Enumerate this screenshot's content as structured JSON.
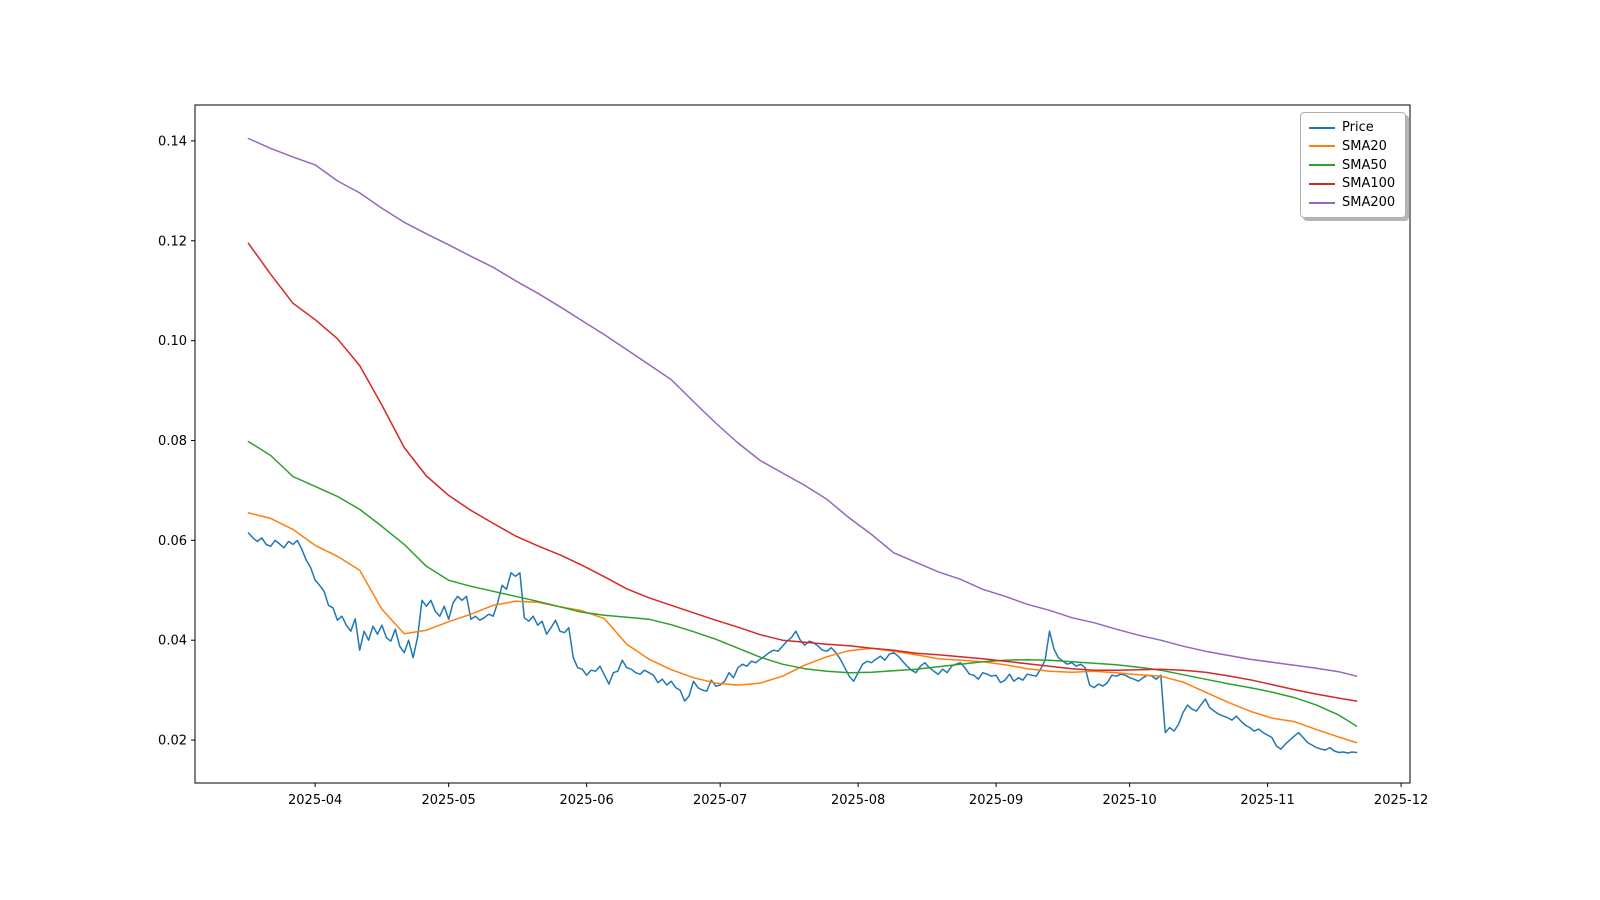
{
  "chart_data": {
    "type": "line",
    "title": "",
    "xlabel": "",
    "ylabel": "",
    "grid": false,
    "x_axis": {
      "note": "x in day-offsets from plot left edge (left edge = 2025-03-05); series run ~2025-03-17 to ~2025-11-21",
      "domain_days": [
        0,
        273
      ],
      "ticks": [
        {
          "day": 27,
          "label": "2025-04"
        },
        {
          "day": 57,
          "label": "2025-05"
        },
        {
          "day": 88,
          "label": "2025-06"
        },
        {
          "day": 118,
          "label": "2025-07"
        },
        {
          "day": 149,
          "label": "2025-08"
        },
        {
          "day": 180,
          "label": "2025-09"
        },
        {
          "day": 210,
          "label": "2025-10"
        },
        {
          "day": 241,
          "label": "2025-11"
        },
        {
          "day": 271,
          "label": "2025-12"
        }
      ]
    },
    "y_axis": {
      "range": [
        0.0114,
        0.1472
      ],
      "ticks": [
        {
          "value": 0.02,
          "label": "0.02"
        },
        {
          "value": 0.04,
          "label": "0.04"
        },
        {
          "value": 0.06,
          "label": "0.06"
        },
        {
          "value": 0.08,
          "label": "0.08"
        },
        {
          "value": 0.1,
          "label": "0.10"
        },
        {
          "value": 0.12,
          "label": "0.12"
        },
        {
          "value": 0.14,
          "label": "0.14"
        }
      ]
    },
    "legend": {
      "position": "upper-right",
      "entries": [
        "Price",
        "SMA20",
        "SMA50",
        "SMA100",
        "SMA200"
      ]
    },
    "series": [
      {
        "name": "Price",
        "color": "#1f77b4",
        "x_start": 12,
        "x_step": 1,
        "x_last": 261,
        "values": [
          0.0615,
          0.0605,
          0.0598,
          0.0605,
          0.0592,
          0.0588,
          0.06,
          0.0593,
          0.0585,
          0.0598,
          0.0592,
          0.06,
          0.0582,
          0.056,
          0.0545,
          0.052,
          0.051,
          0.0498,
          0.047,
          0.0465,
          0.044,
          0.0448,
          0.043,
          0.0418,
          0.0443,
          0.038,
          0.0418,
          0.04,
          0.0428,
          0.0412,
          0.043,
          0.0405,
          0.0398,
          0.0422,
          0.0388,
          0.0375,
          0.04,
          0.0365,
          0.0405,
          0.048,
          0.0468,
          0.048,
          0.0458,
          0.0448,
          0.0468,
          0.0442,
          0.0475,
          0.0488,
          0.048,
          0.0488,
          0.0442,
          0.0448,
          0.044,
          0.0445,
          0.0452,
          0.0448,
          0.0475,
          0.051,
          0.0502,
          0.0535,
          0.0528,
          0.0535,
          0.0445,
          0.0438,
          0.0448,
          0.043,
          0.0438,
          0.0412,
          0.0425,
          0.044,
          0.0418,
          0.0415,
          0.0425,
          0.0365,
          0.0345,
          0.0342,
          0.033,
          0.034,
          0.0338,
          0.0348,
          0.033,
          0.0312,
          0.0335,
          0.0338,
          0.036,
          0.0345,
          0.0342,
          0.0335,
          0.0332,
          0.034,
          0.0335,
          0.033,
          0.0315,
          0.0322,
          0.031,
          0.0318,
          0.0305,
          0.03,
          0.0278,
          0.0288,
          0.0318,
          0.0305,
          0.03,
          0.0298,
          0.032,
          0.0308,
          0.031,
          0.0318,
          0.0335,
          0.0325,
          0.0345,
          0.0352,
          0.0348,
          0.0358,
          0.0355,
          0.0362,
          0.0368,
          0.0375,
          0.038,
          0.0378,
          0.0388,
          0.0398,
          0.0405,
          0.0418,
          0.04,
          0.039,
          0.0398,
          0.0395,
          0.0388,
          0.038,
          0.0378,
          0.0385,
          0.0375,
          0.0362,
          0.0345,
          0.0328,
          0.0318,
          0.0335,
          0.0352,
          0.0358,
          0.0355,
          0.0362,
          0.0368,
          0.036,
          0.0372,
          0.0375,
          0.0368,
          0.0358,
          0.0348,
          0.034,
          0.0335,
          0.0348,
          0.0355,
          0.0345,
          0.0338,
          0.0332,
          0.0342,
          0.0335,
          0.0348,
          0.0352,
          0.0355,
          0.0345,
          0.0332,
          0.033,
          0.0322,
          0.0335,
          0.0332,
          0.0328,
          0.033,
          0.0315,
          0.032,
          0.0332,
          0.0318,
          0.0325,
          0.032,
          0.0332,
          0.033,
          0.0328,
          0.0342,
          0.036,
          0.0418,
          0.0382,
          0.0365,
          0.0358,
          0.0352,
          0.0355,
          0.0348,
          0.0352,
          0.0345,
          0.031,
          0.0305,
          0.0312,
          0.0308,
          0.0315,
          0.033,
          0.0328,
          0.0332,
          0.033,
          0.0325,
          0.0322,
          0.0318,
          0.0325,
          0.033,
          0.0328,
          0.0322,
          0.033,
          0.0215,
          0.0225,
          0.0218,
          0.0232,
          0.0255,
          0.027,
          0.0262,
          0.0258,
          0.027,
          0.0282,
          0.0265,
          0.0258,
          0.0252,
          0.0248,
          0.0245,
          0.024,
          0.0248,
          0.0238,
          0.023,
          0.0225,
          0.0218,
          0.0222,
          0.0215,
          0.021,
          0.0205,
          0.0188,
          0.0182,
          0.0192,
          0.02,
          0.0208,
          0.0215,
          0.0205,
          0.0195,
          0.019,
          0.0185,
          0.0182,
          0.018,
          0.0185,
          0.0178,
          0.0175,
          0.0176,
          0.0174,
          0.0176,
          0.0175
        ]
      },
      {
        "name": "SMA20",
        "color": "#ff7f0e",
        "x_start": 12,
        "x_step": 5,
        "x_last": 261,
        "values": [
          0.0655,
          0.0644,
          0.0622,
          0.059,
          0.0568,
          0.054,
          0.0462,
          0.0413,
          0.042,
          0.0437,
          0.0452,
          0.047,
          0.0478,
          0.0476,
          0.0467,
          0.0459,
          0.0443,
          0.0392,
          0.0362,
          0.0341,
          0.0325,
          0.0314,
          0.031,
          0.0314,
          0.0328,
          0.035,
          0.0367,
          0.0379,
          0.0384,
          0.0378,
          0.0371,
          0.0363,
          0.036,
          0.0357,
          0.0351,
          0.0343,
          0.0338,
          0.0336,
          0.0338,
          0.0335,
          0.0331,
          0.0328,
          0.0316,
          0.0296,
          0.0276,
          0.0258,
          0.0244,
          0.0237,
          0.0221,
          0.0206,
          0.0195
        ]
      },
      {
        "name": "SMA50",
        "color": "#2ca02c",
        "x_start": 12,
        "x_step": 5,
        "x_last": 261,
        "values": [
          0.0798,
          0.077,
          0.0728,
          0.0708,
          0.0688,
          0.0662,
          0.0628,
          0.0592,
          0.0548,
          0.052,
          0.0508,
          0.0498,
          0.0488,
          0.0478,
          0.0467,
          0.0456,
          0.045,
          0.0446,
          0.0442,
          0.0431,
          0.0417,
          0.0402,
          0.0384,
          0.0366,
          0.0352,
          0.0343,
          0.0338,
          0.0335,
          0.0336,
          0.0339,
          0.0342,
          0.0347,
          0.0352,
          0.0357,
          0.036,
          0.0361,
          0.036,
          0.0357,
          0.0354,
          0.0351,
          0.0346,
          0.034,
          0.0331,
          0.0322,
          0.0313,
          0.0305,
          0.0296,
          0.0285,
          0.027,
          0.025,
          0.0228
        ]
      },
      {
        "name": "SMA100",
        "color": "#d62728",
        "x_start": 12,
        "x_step": 5,
        "x_last": 261,
        "values": [
          0.1195,
          0.1133,
          0.1075,
          0.1042,
          0.1004,
          0.095,
          0.0871,
          0.0786,
          0.0729,
          0.069,
          0.066,
          0.0634,
          0.0609,
          0.0589,
          0.0571,
          0.055,
          0.0527,
          0.0503,
          0.0485,
          0.047,
          0.0455,
          0.044,
          0.0426,
          0.0411,
          0.04,
          0.0396,
          0.0392,
          0.0389,
          0.0384,
          0.038,
          0.0374,
          0.0371,
          0.0367,
          0.0363,
          0.0358,
          0.0353,
          0.0348,
          0.0343,
          0.034,
          0.034,
          0.0341,
          0.0342,
          0.034,
          0.0336,
          0.0329,
          0.0321,
          0.0311,
          0.0301,
          0.0292,
          0.0284,
          0.0278
        ]
      },
      {
        "name": "SMA200",
        "color": "#9467bd",
        "x_start": 12,
        "x_step": 5,
        "x_last": 261,
        "values": [
          0.1405,
          0.1385,
          0.1368,
          0.1352,
          0.132,
          0.1296,
          0.1265,
          0.1237,
          0.1214,
          0.1192,
          0.1169,
          0.1147,
          0.112,
          0.1095,
          0.1068,
          0.104,
          0.1012,
          0.0982,
          0.0952,
          0.0922,
          0.0878,
          0.0835,
          0.0795,
          0.076,
          0.0735,
          0.071,
          0.0682,
          0.0645,
          0.0612,
          0.0575,
          0.0556,
          0.0537,
          0.0522,
          0.0502,
          0.0488,
          0.0472,
          0.046,
          0.0445,
          0.0435,
          0.0422,
          0.041,
          0.04,
          0.0388,
          0.0378,
          0.037,
          0.0362,
          0.0356,
          0.035,
          0.0344,
          0.0337,
          0.0328
        ]
      }
    ]
  }
}
